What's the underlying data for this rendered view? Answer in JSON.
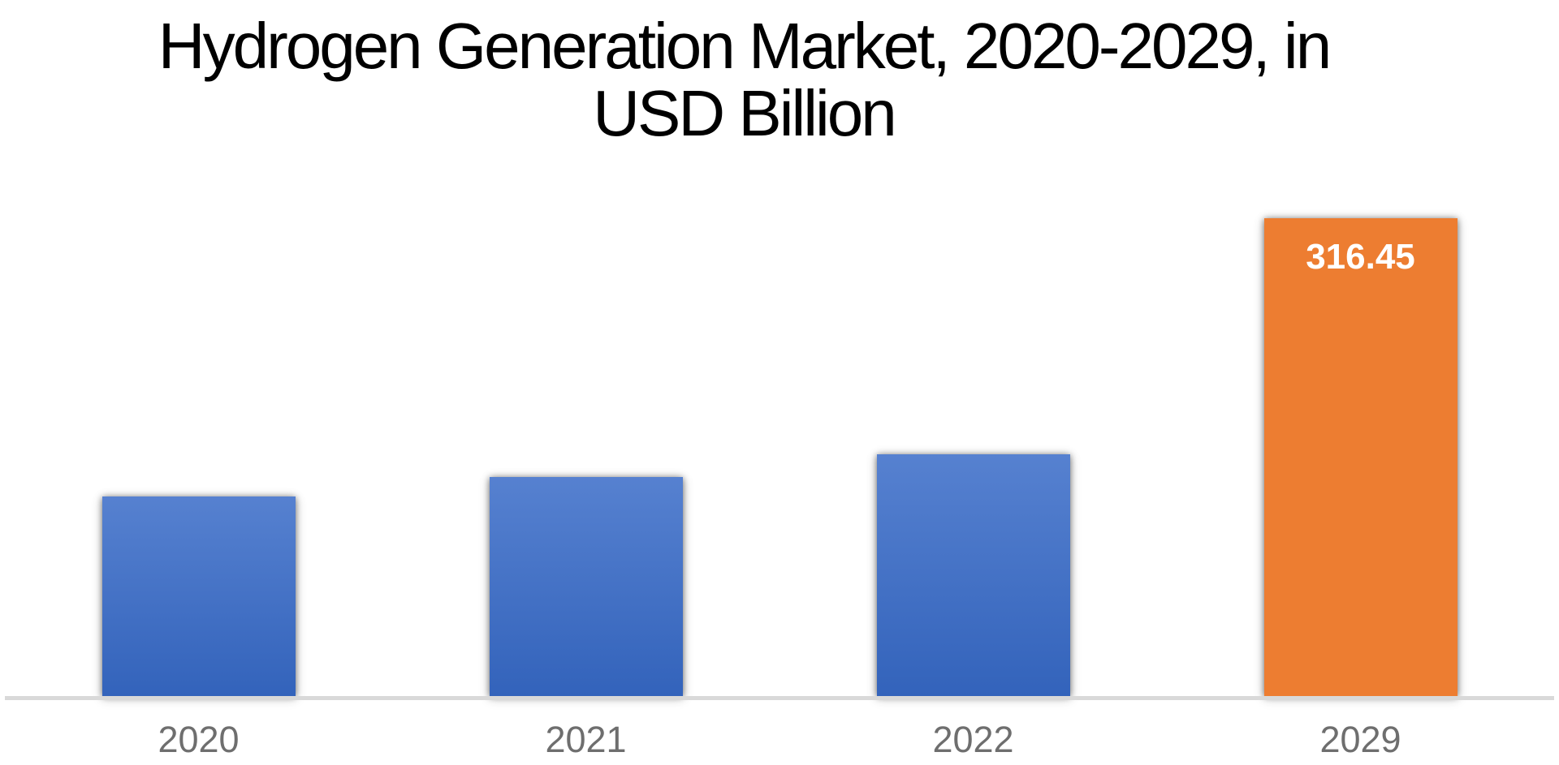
{
  "chart_data": {
    "type": "bar",
    "title": "Hydrogen Generation Market, 2020-2029, in USD Billion",
    "categories": [
      "2020",
      "2021",
      "2022",
      "2029"
    ],
    "values": [
      132,
      145,
      160,
      316.45
    ],
    "data_labels": [
      "",
      "",
      "",
      "316.45"
    ],
    "xlabel": "",
    "ylabel": "",
    "grid": false,
    "legend": false,
    "bar_colors": [
      "blue",
      "blue",
      "blue",
      "orange"
    ]
  },
  "title": {
    "lines": [
      "Hydrogen Generation Market, 2020-2029, in",
      "USD Billion"
    ]
  },
  "colors": {
    "background": "#FFFFFF",
    "title_text": "#000000",
    "bar_blue_top": "#5681D0",
    "bar_blue_bottom": "#3363BB",
    "bar_orange": "#ED7D31",
    "axis_line": "#D9D9D9",
    "category_label": "#6E6E6E",
    "data_label": "#FFFFFF"
  }
}
